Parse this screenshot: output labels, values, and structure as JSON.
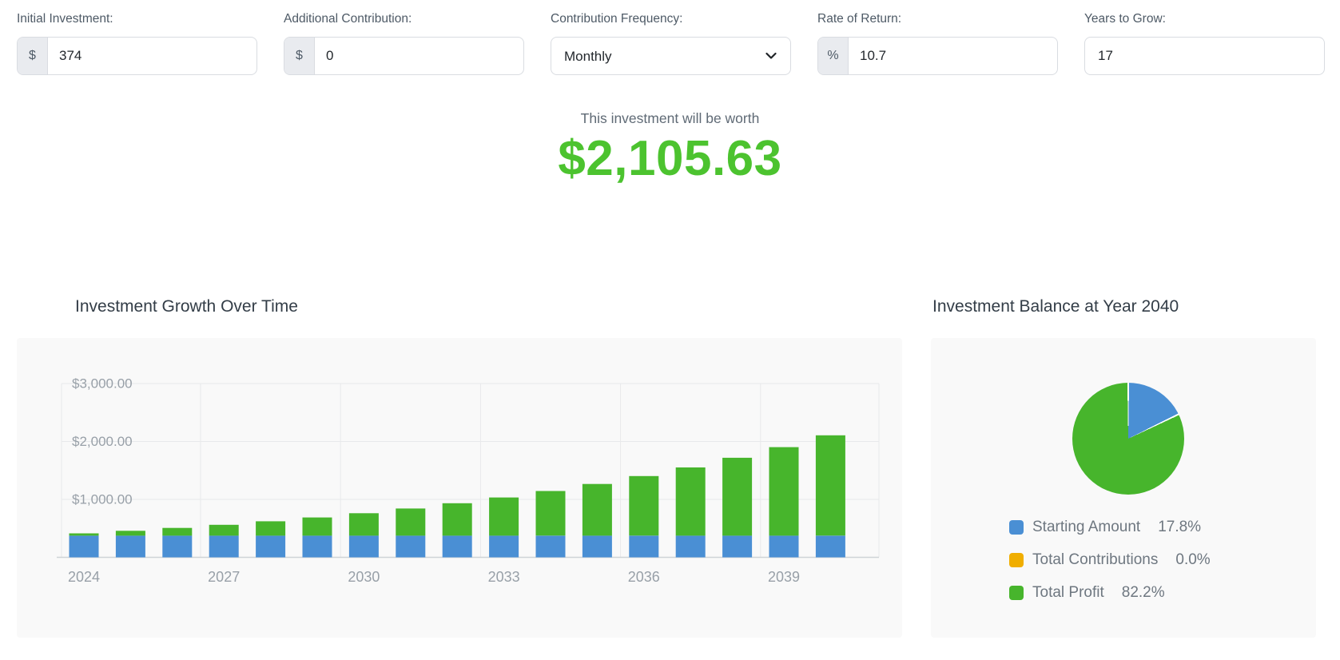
{
  "fields": [
    {
      "label": "Initial Investment:",
      "prefix": "$",
      "value": "374"
    },
    {
      "label": "Additional Contribution:",
      "prefix": "$",
      "value": "0"
    },
    {
      "label": "Contribution Frequency:",
      "value": "Monthly"
    },
    {
      "label": "Rate of Return:",
      "prefix": "%",
      "value": "10.7"
    },
    {
      "label": "Years to Grow:",
      "value": "17"
    }
  ],
  "headline": {
    "caption": "This investment will be worth",
    "amount": "$2,105.63",
    "amount_color": "#4cc32f"
  },
  "colors": {
    "blue": "#4a8fd4",
    "green": "#47b52c",
    "yellow": "#f0ae00",
    "card_bg": "#f9f9f9",
    "grid": "#e8e9eb",
    "axis": "#cfd3d7",
    "tick_text": "#98a0a8"
  },
  "chart_data": [
    {
      "type": "bar",
      "stacked": true,
      "title": "Investment Growth Over Time",
      "x": [
        2024,
        2025,
        2026,
        2027,
        2028,
        2029,
        2030,
        2031,
        2032,
        2033,
        2034,
        2035,
        2036,
        2037,
        2038,
        2039,
        2040
      ],
      "x_tick_every": 3,
      "x_ticks_shown": [
        "2024",
        "2027",
        "2030",
        "2033",
        "2036",
        "2039"
      ],
      "series": [
        {
          "name": "Starting Amount",
          "color": "#4a8fd4",
          "values": [
            374,
            374,
            374,
            374,
            374,
            374,
            374,
            374,
            374,
            374,
            374,
            374,
            374,
            374,
            374,
            374,
            374
          ]
        },
        {
          "name": "Total Profit",
          "color": "#47b52c",
          "values": [
            40.02,
            84.32,
            133.36,
            187.64,
            247.74,
            314.27,
            387.91,
            469.44,
            559.69,
            659.59,
            770.19,
            892.61,
            1028.14,
            1178.17,
            1344.25,
            1528.1,
            1731.63
          ]
        }
      ],
      "totals": [
        414.02,
        458.32,
        507.36,
        561.64,
        621.74,
        688.27,
        761.91,
        843.44,
        933.69,
        1033.59,
        1144.19,
        1266.61,
        1402.14,
        1552.17,
        1718.25,
        1902.1,
        2105.63
      ],
      "ylim": [
        0,
        3100
      ],
      "yticks": [
        {
          "value": 1000,
          "label": "$1,000.00"
        },
        {
          "value": 2000,
          "label": "$2,000.00"
        },
        {
          "value": 3000,
          "label": "$3,000.00"
        }
      ],
      "grid": true,
      "legend": "none"
    },
    {
      "type": "pie",
      "title": "Investment Balance at Year 2040",
      "slices": [
        {
          "label": "Starting Amount",
          "pct": 17.8,
          "pct_label": "17.8%",
          "color": "#4a8fd4"
        },
        {
          "label": "Total Contributions",
          "pct": 0.0,
          "pct_label": "0.0%",
          "color": "#f0ae00"
        },
        {
          "label": "Total Profit",
          "pct": 82.2,
          "pct_label": "82.2%",
          "color": "#47b52c"
        }
      ],
      "legend_position": "bottom-left"
    }
  ]
}
